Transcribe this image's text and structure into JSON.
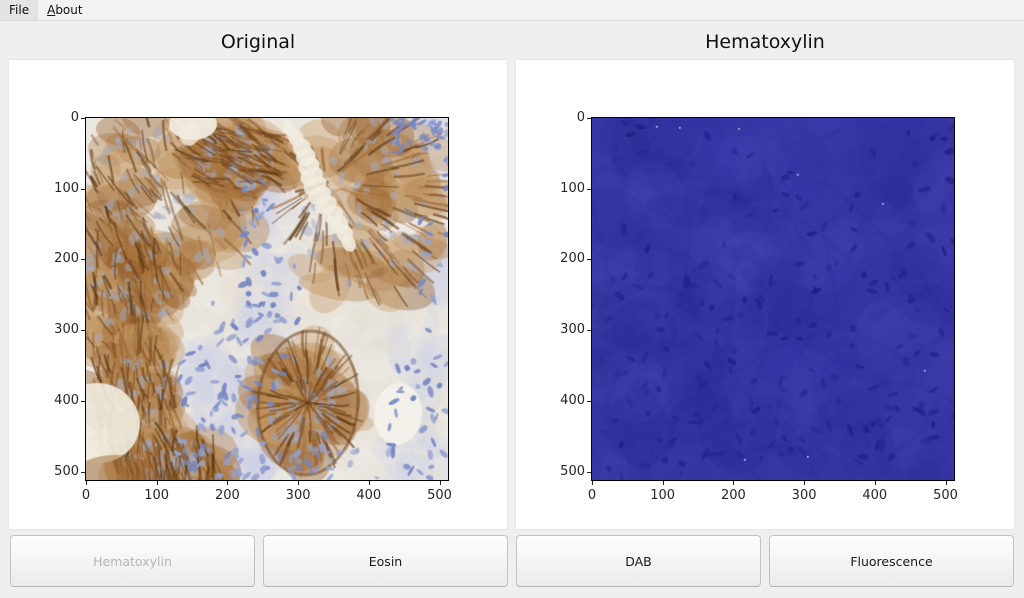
{
  "menubar": {
    "file_label": "File",
    "about_underlined": "A",
    "about_rest": "bout"
  },
  "panels": [
    {
      "title": "Original",
      "ticks": [
        "0",
        "100",
        "200",
        "300",
        "400",
        "500"
      ]
    },
    {
      "title": "Hematoxylin",
      "ticks": [
        "0",
        "100",
        "200",
        "300",
        "400",
        "500"
      ]
    }
  ],
  "buttons": [
    {
      "label": "Hematoxylin",
      "disabled": true
    },
    {
      "label": "Eosin",
      "disabled": false
    },
    {
      "label": "DAB",
      "disabled": false
    },
    {
      "label": "Fluorescence",
      "disabled": false
    }
  ],
  "palette": {
    "window_bg": "#efefef",
    "card_bg": "#ffffff",
    "disabled_text": "#b5b5b5",
    "orig_bg": "#eae6df",
    "orig_cream": "#f6f3ec",
    "orig_shade": "#ddd7cb",
    "stroma_wash": "#ccd3e8",
    "brown_mid": "#9c6530",
    "brown_light": "#b5854d",
    "brown_tan": "#c79d6b",
    "brown_dark": "#6f431c",
    "brown_deep": "#58350f",
    "cell_blue": "#a3abc6",
    "nuc_blue": "#7586c2",
    "nuc_blue2": "#93a0cf",
    "lumen": "#f1ecdf",
    "lumen2": "#f3f1ea",
    "hema_base": "#3535a3",
    "hema_dark1": "#2b2b95",
    "hema_dark2": "#26268c",
    "hema_light1": "#4242ae",
    "hema_light2": "#4b4bb5",
    "hema_nuc": "#1b1b82",
    "hema_nuc2": "#22228c",
    "speck": "#e6e6fa"
  }
}
